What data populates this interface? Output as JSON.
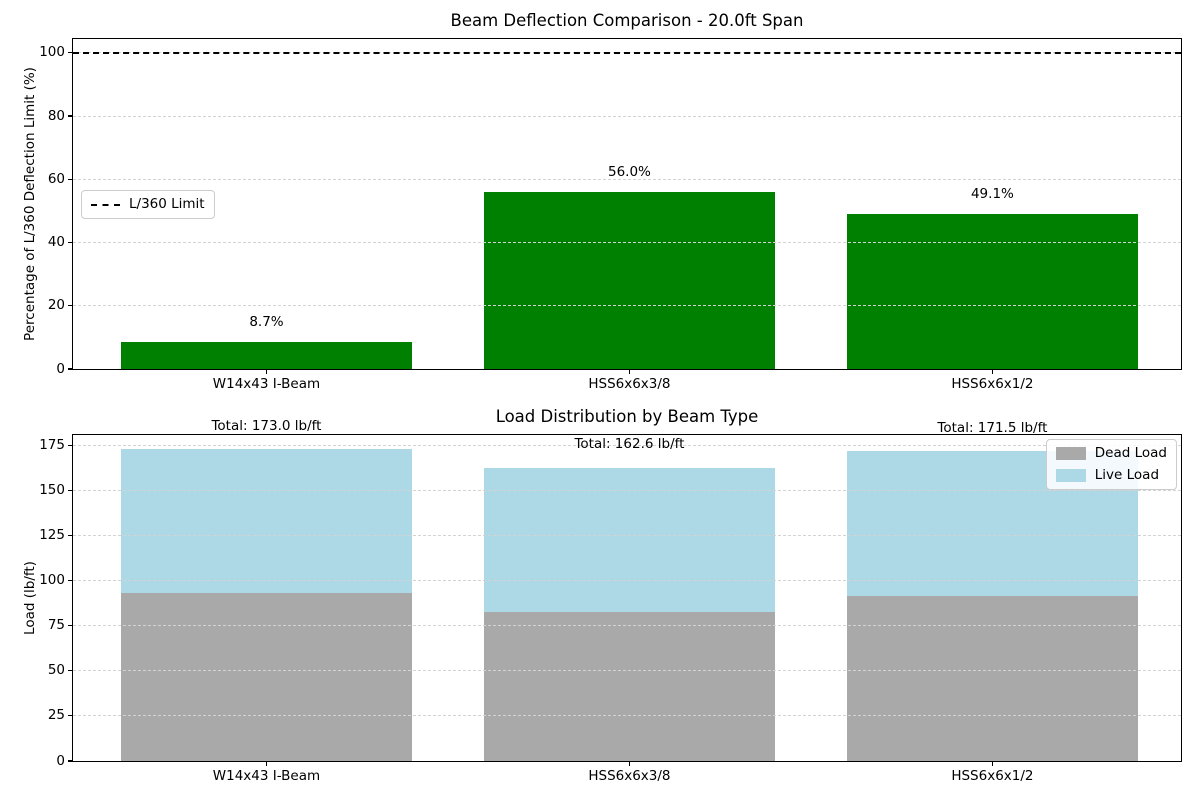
{
  "figure": {
    "background": "#ffffff"
  },
  "colors": {
    "deflection_bar_green": "#008000",
    "dead_load_gray": "#a9a9a9",
    "live_load_blue": "#add8e6",
    "grid": "#d3d3d3",
    "axis": "#000000"
  },
  "chart_data": [
    {
      "type": "bar",
      "title": "Beam Deflection Comparison - 20.0ft Span",
      "xlabel": "",
      "ylabel": "Percentage of L/360 Deflection Limit (%)",
      "categories": [
        "W14x43 I-Beam",
        "HSS6x6x3/8",
        "HSS6x6x1/2"
      ],
      "values": [
        8.7,
        56.0,
        49.1
      ],
      "bar_labels": [
        "8.7%",
        "56.0%",
        "49.1%"
      ],
      "bar_color": "#008000",
      "ylim": [
        0,
        105
      ],
      "yticks": [
        0,
        20,
        40,
        60,
        80,
        100
      ],
      "grid": "horizontal-dashed",
      "reference_line": {
        "value": 100,
        "color": "#000000",
        "style": "dashed",
        "label": "L/360 Limit"
      },
      "legend": {
        "position": "center left",
        "entries": [
          {
            "label": "L/360 Limit",
            "swatch": "dashed-black-line",
            "color": "#000000"
          }
        ]
      }
    },
    {
      "type": "bar",
      "stacked": true,
      "title": "Load Distribution by Beam Type",
      "xlabel": "",
      "ylabel": "Load (lb/ft)",
      "categories": [
        "W14x43 I-Beam",
        "HSS6x6x3/8",
        "HSS6x6x1/2"
      ],
      "series": [
        {
          "name": "Dead Load",
          "color": "#a9a9a9",
          "values": [
            93.0,
            82.6,
            91.5
          ]
        },
        {
          "name": "Live Load",
          "color": "#add8e6",
          "values": [
            80.0,
            80.0,
            80.0
          ]
        }
      ],
      "totals": [
        173.0,
        162.6,
        171.5
      ],
      "total_labels": [
        "Total: 173.0 lb/ft",
        "Total: 162.6 lb/ft",
        "Total: 171.5 lb/ft"
      ],
      "ylim": [
        0,
        181.7
      ],
      "yticks": [
        0,
        25,
        50,
        75,
        100,
        125,
        150,
        175
      ],
      "grid": "horizontal-dashed",
      "legend": {
        "position": "upper right",
        "entries": [
          {
            "label": "Dead Load",
            "swatch": "filled",
            "color": "#a9a9a9"
          },
          {
            "label": "Live Load",
            "swatch": "filled",
            "color": "#add8e6"
          }
        ]
      }
    }
  ]
}
